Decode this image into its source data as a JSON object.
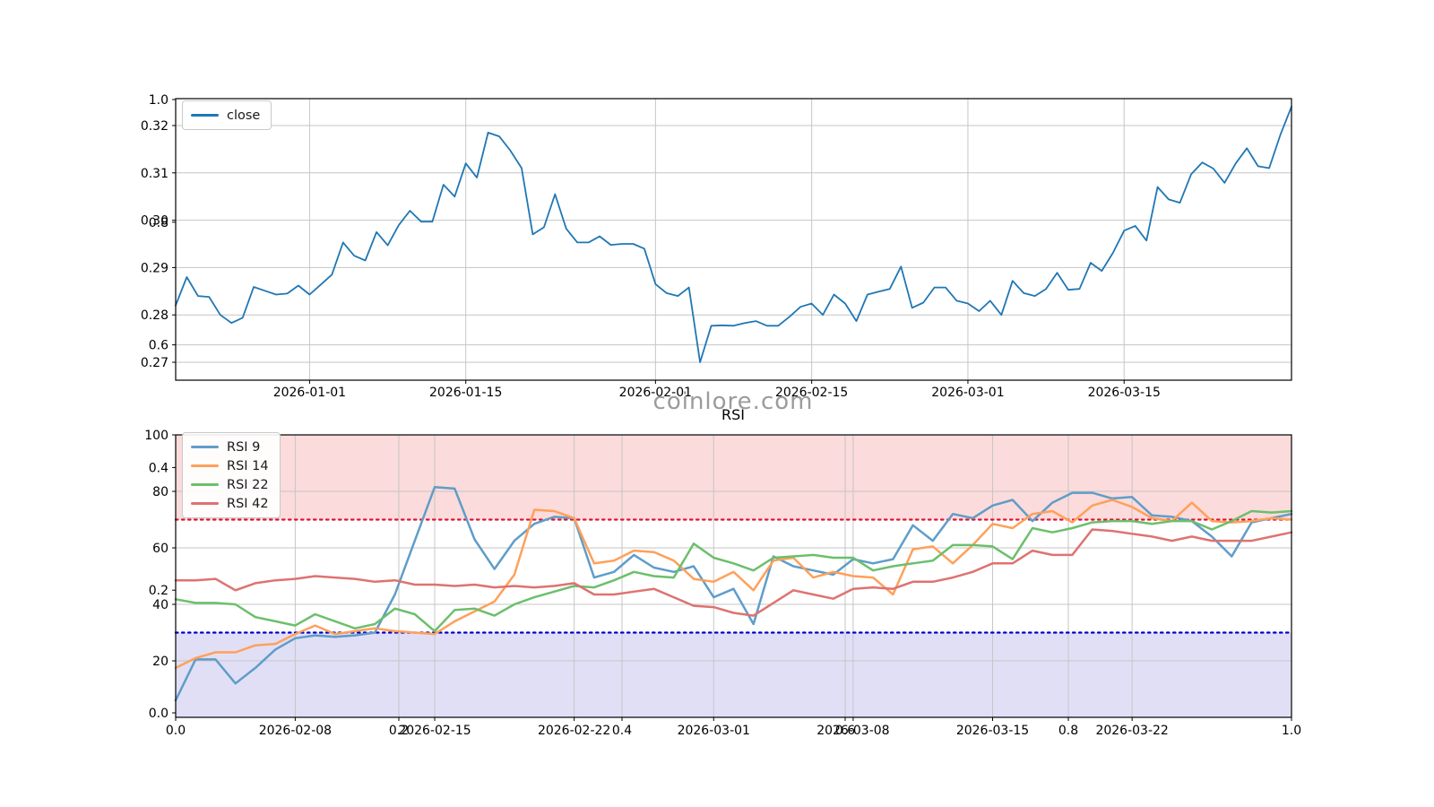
{
  "watermark_text": "coinlore.com",
  "charts": {
    "price": {
      "title": "",
      "legend_note": "close"
    },
    "rsi": {
      "title": "RSI"
    }
  },
  "colors": {
    "close_line": "#1f77b4",
    "rsi9_line": "#5f9dc9",
    "rsi14_line": "#ffa05a",
    "rsi22_line": "#6cbf6c",
    "rsi42_line": "#dd7370",
    "overbought_band": "#fbdbdb",
    "oversold_band": "#e1dff6",
    "overbought_ref_line": "#dc1432",
    "oversold_ref_line": "#0000cd",
    "grid": "#c6c6c6",
    "axis_frame": "#000000",
    "tick_text": "#000000",
    "watermark": "#9b9b9b"
  },
  "overlay_axis": {
    "y_ticks": [
      {
        "f": 1.0,
        "label": "1.0"
      },
      {
        "f": 0.8,
        "label": "0.8"
      },
      {
        "f": 0.6,
        "label": "0.6"
      },
      {
        "f": 0.4,
        "label": "0.4"
      },
      {
        "f": 0.2,
        "label": "0.2"
      },
      {
        "f": 0.0,
        "label": "0.0"
      }
    ],
    "x_ticks": [
      {
        "f": 0.0,
        "label": "0.0"
      },
      {
        "f": 0.2,
        "label": "0.2"
      },
      {
        "f": 0.4,
        "label": "0.4"
      },
      {
        "f": 0.6,
        "label": "0.6"
      },
      {
        "f": 0.8,
        "label": "0.8"
      },
      {
        "f": 1.0,
        "label": "1.0"
      }
    ]
  },
  "chart_data": [
    {
      "type": "line",
      "name": "price",
      "title": "",
      "xlabel": "",
      "ylabel": "",
      "x_start_date": "2025-12-20",
      "x_ticks": [
        {
          "day": 12,
          "label": "2026-01-01"
        },
        {
          "day": 26,
          "label": "2026-01-15"
        },
        {
          "day": 43,
          "label": "2026-02-01"
        },
        {
          "day": 57,
          "label": "2026-02-15"
        },
        {
          "day": 71,
          "label": "2026-03-01"
        },
        {
          "day": 85,
          "label": "2026-03-15"
        }
      ],
      "y_ticks": [
        {
          "value": 0.27,
          "label": "0.27"
        },
        {
          "value": 0.28,
          "label": "0.28"
        },
        {
          "value": 0.29,
          "label": "0.29"
        },
        {
          "value": 0.3,
          "label": "0.30"
        },
        {
          "value": 0.31,
          "label": "0.31"
        },
        {
          "value": 0.32,
          "label": "0.32"
        }
      ],
      "ylim": [
        0.2662,
        0.3257
      ],
      "grid": true,
      "legend_position": "upper left",
      "series": [
        {
          "name": "close",
          "color": "#1f77b4",
          "width": 1.8,
          "values": [
            0.282,
            0.288,
            0.284,
            0.2838,
            0.28,
            0.2783,
            0.2794,
            0.2859,
            0.2851,
            0.2843,
            0.2845,
            0.2862,
            0.2843,
            0.2864,
            0.2885,
            0.2953,
            0.2925,
            0.2915,
            0.2975,
            0.2947,
            0.299,
            0.302,
            0.2997,
            0.2997,
            0.3075,
            0.305,
            0.312,
            0.309,
            0.3185,
            0.3177,
            0.3147,
            0.311,
            0.297,
            0.2985,
            0.3055,
            0.2982,
            0.2953,
            0.2953,
            0.2966,
            0.2948,
            0.295,
            0.295,
            0.294,
            0.2865,
            0.2846,
            0.284,
            0.2858,
            0.27,
            0.2777,
            0.2778,
            0.2777,
            0.2783,
            0.2787,
            0.2777,
            0.2777,
            0.2796,
            0.2817,
            0.2824,
            0.28,
            0.2843,
            0.2824,
            0.2787,
            0.2843,
            0.2849,
            0.2855,
            0.2902,
            0.2815,
            0.2826,
            0.2858,
            0.2858,
            0.283,
            0.2824,
            0.2808,
            0.283,
            0.28,
            0.2872,
            0.2846,
            0.284,
            0.2855,
            0.2889,
            0.2853,
            0.2855,
            0.291,
            0.2893,
            0.2931,
            0.2978,
            0.2988,
            0.2957,
            0.307,
            0.3044,
            0.3037,
            0.3097,
            0.3122,
            0.3109,
            0.3079,
            0.312,
            0.3152,
            0.3114,
            0.311,
            0.318,
            0.324
          ]
        }
      ]
    },
    {
      "type": "line",
      "name": "rsi",
      "title": "RSI",
      "xlabel": "",
      "ylabel": "",
      "x_start_date": "2026-02-02",
      "x_ticks": [
        {
          "day": 6,
          "label": "2026-02-08"
        },
        {
          "day": 13,
          "label": "2026-02-15"
        },
        {
          "day": 20,
          "label": "2026-02-22"
        },
        {
          "day": 27,
          "label": "2026-03-01"
        },
        {
          "day": 34,
          "label": "2026-03-08"
        },
        {
          "day": 41,
          "label": "2026-03-15"
        },
        {
          "day": 48,
          "label": "2026-03-22"
        }
      ],
      "y_ticks": [
        {
          "value": 20,
          "label": "20"
        },
        {
          "value": 40,
          "label": "40"
        },
        {
          "value": 60,
          "label": "60"
        },
        {
          "value": 80,
          "label": "80"
        },
        {
          "value": 100,
          "label": "100"
        }
      ],
      "ylim": [
        0,
        100
      ],
      "grid": true,
      "legend_position": "upper left",
      "bands": [
        {
          "name": "overbought-band",
          "from": 70,
          "to": 100,
          "color": "#fbdbdb"
        },
        {
          "name": "oversold-band",
          "from": 0,
          "to": 30,
          "color": "#e1dff6"
        }
      ],
      "ref_lines": [
        {
          "name": "overbought-threshold",
          "value": 70,
          "color": "#dc1432"
        },
        {
          "name": "oversold-threshold",
          "value": 30,
          "color": "#0000cd"
        }
      ],
      "series": [
        {
          "name": "RSI 9",
          "color": "#5f9dc9",
          "width": 2.5,
          "values": [
            6,
            20.5,
            20.5,
            12,
            17.5,
            24,
            28,
            29,
            28.5,
            29,
            30,
            43.5,
            62.5,
            81.5,
            81,
            63,
            52.5,
            62.5,
            68.5,
            71,
            70.5,
            49.5,
            51.5,
            57.5,
            53,
            51.5,
            53.5,
            42.5,
            45.5,
            33,
            57,
            53.5,
            52,
            50.5,
            56,
            54.5,
            56,
            68,
            62.5,
            72,
            70.5,
            75,
            77,
            69.5,
            76,
            79.5,
            79.5,
            77.5,
            78,
            71.5,
            71,
            69.5,
            64,
            57,
            69,
            70.5,
            72
          ]
        },
        {
          "name": "RSI 14",
          "color": "#ffa05a",
          "width": 2.5,
          "values": [
            17.5,
            21,
            23,
            23,
            25.5,
            26,
            29.5,
            32.5,
            29.5,
            30.5,
            31.5,
            30.5,
            30,
            29.5,
            34,
            37.5,
            41,
            50.5,
            73.5,
            73,
            70.5,
            54.5,
            55.5,
            59,
            58.5,
            55.5,
            49,
            48,
            51.5,
            45,
            55.5,
            56.5,
            49.5,
            51.5,
            50,
            49.5,
            43.5,
            59.5,
            60.5,
            54.5,
            61,
            68.5,
            67,
            72,
            73,
            69,
            75,
            77,
            74.5,
            70.5,
            69.5,
            76,
            69.5,
            69,
            69.5,
            70.5,
            70
          ]
        },
        {
          "name": "RSI 22",
          "color": "#6cbf6c",
          "width": 2.5,
          "values": [
            41.8,
            40.5,
            40.5,
            40,
            35.5,
            34,
            32.5,
            36.5,
            34,
            31.5,
            33,
            38.5,
            36.5,
            30.5,
            38,
            38.5,
            36,
            40,
            42.5,
            44.5,
            46.5,
            46,
            48.5,
            51.5,
            50,
            49.5,
            61.5,
            56.5,
            54.5,
            52,
            56.5,
            57,
            57.5,
            56.5,
            56.5,
            52,
            53.5,
            54.5,
            55.5,
            61,
            61,
            60.5,
            56,
            67,
            65.5,
            67,
            69,
            69.5,
            69.5,
            68.5,
            69.5,
            69.5,
            66.5,
            69.5,
            73,
            72.5,
            73
          ]
        },
        {
          "name": "RSI 42",
          "color": "#dd7370",
          "width": 2.5,
          "values": [
            48.5,
            48.5,
            49,
            45,
            47.5,
            48.5,
            49,
            50,
            49.5,
            49,
            48,
            48.5,
            47,
            47,
            46.5,
            47,
            46,
            46.5,
            46,
            46.5,
            47.5,
            43.5,
            43.5,
            44.5,
            45.5,
            42.5,
            39.5,
            39,
            37,
            36,
            40.5,
            45,
            43.5,
            42,
            45.5,
            46,
            45.5,
            48,
            48,
            49.5,
            51.5,
            54.5,
            54.5,
            59,
            57.5,
            57.5,
            66.5,
            66,
            65,
            64,
            62.5,
            64,
            62.5,
            62.5,
            62.5,
            64,
            65.5
          ]
        }
      ]
    }
  ]
}
